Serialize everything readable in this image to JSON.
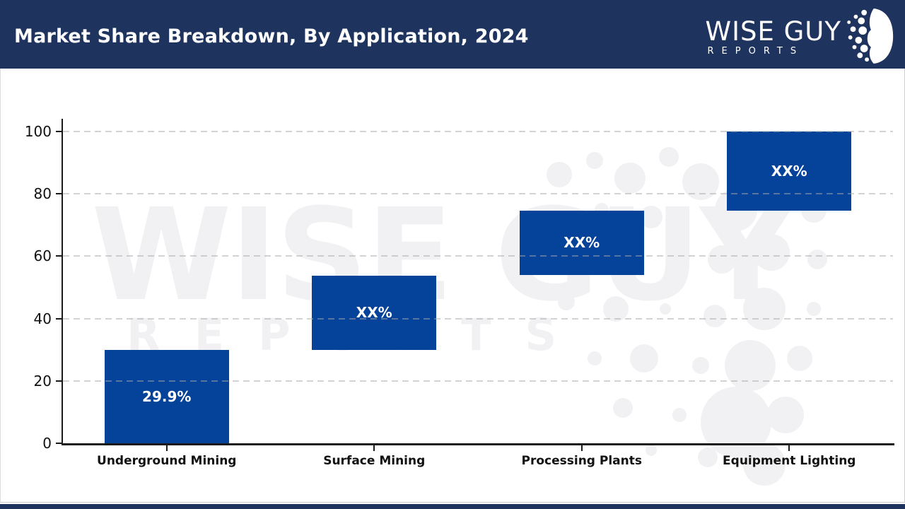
{
  "header": {
    "title": "Market Share Breakdown, By Application, 2024",
    "logo": {
      "primary": "WISE GUY",
      "secondary": "REPORTS"
    }
  },
  "watermark": {
    "primary": "WISE GUY",
    "secondary": "REPORTS"
  },
  "colors": {
    "header_bg": "#1f335f",
    "bar_fill": "#05429a",
    "bar_label_text": "#ffffff",
    "axis": "#1a1a1a",
    "gridline": "#d9d9d9",
    "watermark": "#f1f1f3"
  },
  "chart_data": {
    "type": "bar",
    "subtype": "waterfall",
    "title": "Market Share Breakdown, By Application, 2024",
    "categories": [
      "Underground Mining",
      "Surface Mining",
      "Processing Plants",
      "Equipment Lighting"
    ],
    "segments": [
      {
        "category": "Underground Mining",
        "start": 0,
        "end": 29.9,
        "label": "29.9%"
      },
      {
        "category": "Surface Mining",
        "start": 29.9,
        "end": 53.8,
        "label": "XX%"
      },
      {
        "category": "Processing Plants",
        "start": 54.0,
        "end": 74.7,
        "label": "XX%"
      },
      {
        "category": "Equipment Lighting",
        "start": 74.7,
        "end": 100.0,
        "label": "XX%"
      }
    ],
    "bar_labels": [
      "29.9%",
      "XX%",
      "XX%",
      "XX%"
    ],
    "ylim": [
      0,
      100
    ],
    "yticks": [
      0,
      20,
      40,
      60,
      80,
      100
    ],
    "xlabel": "",
    "ylabel": "",
    "grid": "horizontal-dashed",
    "legend": "none"
  }
}
